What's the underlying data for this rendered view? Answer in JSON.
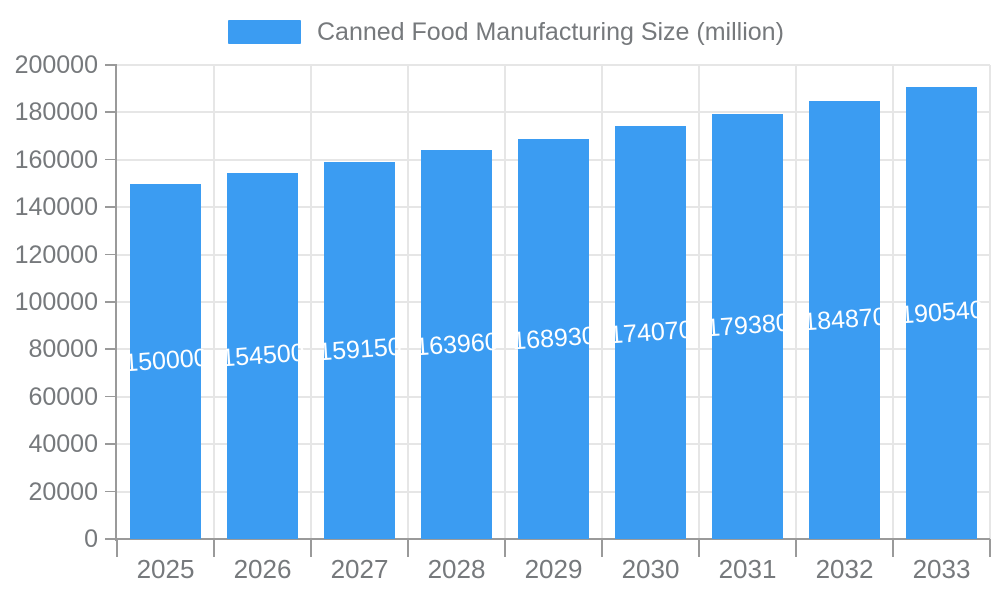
{
  "colors": {
    "bar": "#3b9cf2",
    "axis_line": "#9a9a9a",
    "grid_line": "#e6e6e6",
    "axis_text": "#76797c",
    "legend_text": "#76797c",
    "value_label_text": "#ffffff",
    "background": "#ffffff"
  },
  "chart_data": {
    "type": "bar",
    "title": "Canned Food Manufacturing Size (million)",
    "series_name": "Canned Food Manufacturing Size (million)",
    "categories": [
      "2025",
      "2026",
      "2027",
      "2028",
      "2029",
      "2030",
      "2031",
      "2032",
      "2033"
    ],
    "values": [
      150000,
      154500,
      159150,
      163960,
      168930,
      174070,
      179380,
      184870,
      190540
    ],
    "value_labels": [
      "150000",
      "154500",
      "159150",
      "163960",
      "168930",
      "174070",
      "179380",
      "184870",
      "190540"
    ],
    "xlabel": "",
    "ylabel": "",
    "ylim": [
      0,
      200000
    ],
    "ytick_step": 20000,
    "yticks": [
      0,
      20000,
      40000,
      60000,
      80000,
      100000,
      120000,
      140000,
      160000,
      180000,
      200000
    ],
    "ytick_labels": [
      "0",
      "20000",
      "40000",
      "60000",
      "80000",
      "100000",
      "120000",
      "140000",
      "160000",
      "180000",
      "200000"
    ],
    "grid": true,
    "legend_position": "top",
    "value_labels_visible": true,
    "value_label_position": "inside-middle"
  }
}
